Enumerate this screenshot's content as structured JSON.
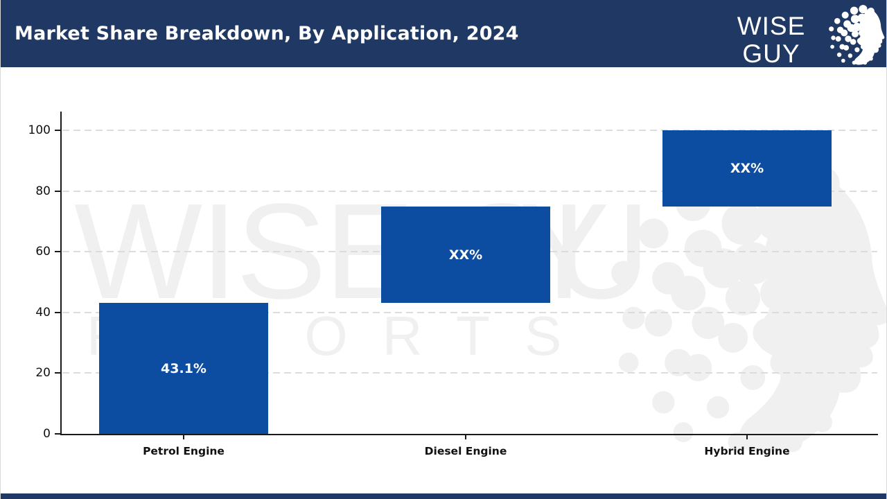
{
  "header": {
    "title": "Market Share Breakdown, By Application, 2024",
    "logo": {
      "line1": "WISE GUY",
      "line2": "REPORTS"
    }
  },
  "watermark": {
    "text1": "WISE GU",
    "text2": "Y",
    "reports": "REPORTS"
  },
  "chart_data": {
    "type": "bar",
    "subtype": "waterfall",
    "title": "Market Share Breakdown, By Application, 2024",
    "categories": [
      "Petrol Engine",
      "Diesel Engine",
      "Hybrid Engine"
    ],
    "segments": [
      {
        "category": "Petrol Engine",
        "start": 0,
        "end": 43.1,
        "label": "43.1%"
      },
      {
        "category": "Diesel Engine",
        "start": 43.1,
        "end": 74.8,
        "label": "XX%"
      },
      {
        "category": "Hybrid Engine",
        "start": 74.8,
        "end": 100,
        "label": "XX%"
      }
    ],
    "yticks": [
      0,
      20,
      40,
      60,
      80,
      100
    ],
    "ylim": [
      0,
      105
    ],
    "xlabel": "",
    "ylabel": "",
    "grid": "horizontal-dashed",
    "legend": "none",
    "bar_color": "#0C4DA2",
    "value_label_color": "#ffffff"
  },
  "colors": {
    "header_bg": "#1F3864",
    "footer_bg": "#1F3864",
    "bar": "#0C4DA2",
    "watermark": "#f0f0f0",
    "gridline": "#dcdcdc",
    "axis": "#1a1a1a",
    "border": "#d9d9d9"
  }
}
